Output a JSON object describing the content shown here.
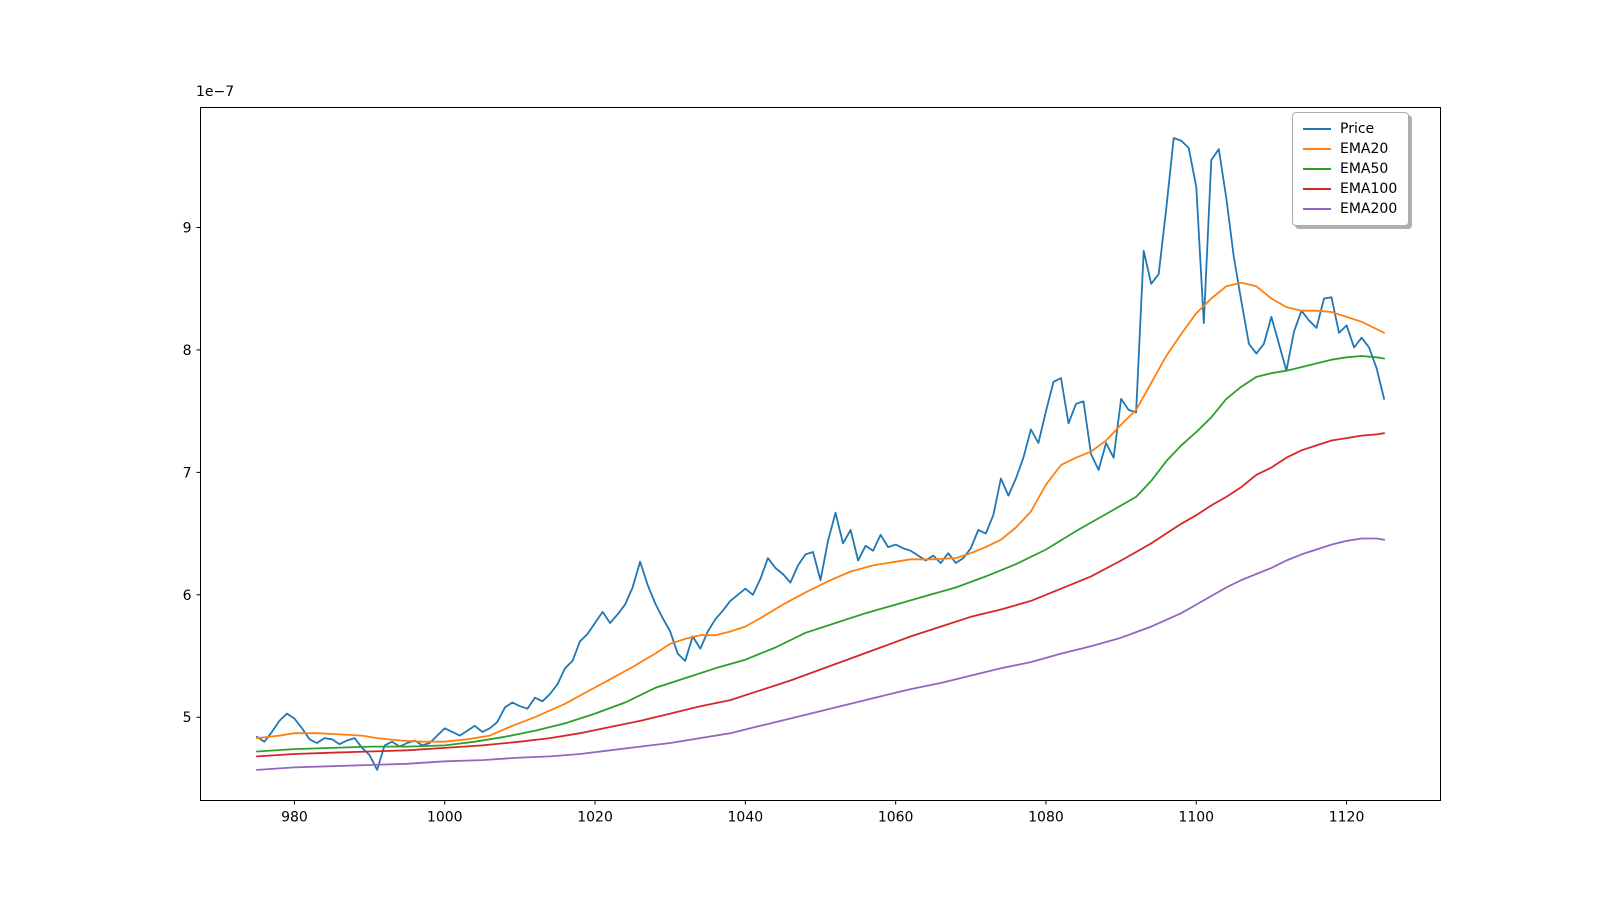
{
  "figure": {
    "background": "#ffffff"
  },
  "chart_data": {
    "type": "line",
    "title": "",
    "xlabel": "",
    "ylabel": "",
    "offset_label": "1e−7",
    "unit_multiplier": "1e-7",
    "xlim": [
      967.5,
      1132.5
    ],
    "ylim": [
      4.32,
      9.98
    ],
    "x_ticks": [
      980,
      1000,
      1020,
      1040,
      1060,
      1080,
      1100,
      1120
    ],
    "y_ticks": [
      5,
      6,
      7,
      8,
      9
    ],
    "grid": false,
    "legend_position": "upper right",
    "series": [
      {
        "name": "Price",
        "color": "#1f77b4",
        "x_start": 975,
        "x_step": 1,
        "y": [
          4.84,
          4.8,
          4.88,
          4.97,
          5.03,
          4.99,
          4.91,
          4.82,
          4.79,
          4.83,
          4.82,
          4.78,
          4.81,
          4.83,
          4.75,
          4.69,
          4.57,
          4.77,
          4.8,
          4.76,
          4.79,
          4.81,
          4.77,
          4.79,
          4.85,
          4.91,
          4.88,
          4.85,
          4.89,
          4.93,
          4.88,
          4.91,
          4.96,
          5.08,
          5.12,
          5.09,
          5.07,
          5.16,
          5.13,
          5.19,
          5.27,
          5.4,
          5.46,
          5.62,
          5.68,
          5.77,
          5.86,
          5.77,
          5.84,
          5.92,
          6.06,
          6.27,
          6.08,
          5.93,
          5.81,
          5.7,
          5.52,
          5.46,
          5.66,
          5.56,
          5.7,
          5.8,
          5.87,
          5.95,
          6.0,
          6.05,
          6.0,
          6.13,
          6.3,
          6.22,
          6.17,
          6.1,
          6.24,
          6.33,
          6.35,
          6.12,
          6.44,
          6.67,
          6.42,
          6.53,
          6.28,
          6.4,
          6.36,
          6.49,
          6.39,
          6.41,
          6.38,
          6.36,
          6.32,
          6.28,
          6.32,
          6.26,
          6.34,
          6.26,
          6.3,
          6.38,
          6.53,
          6.5,
          6.65,
          6.95,
          6.81,
          6.95,
          7.12,
          7.35,
          7.24,
          7.5,
          7.74,
          7.77,
          7.4,
          7.56,
          7.58,
          7.15,
          7.02,
          7.24,
          7.12,
          7.6,
          7.51,
          7.49,
          8.81,
          8.54,
          8.62,
          9.15,
          9.73,
          9.71,
          9.65,
          9.33,
          8.22,
          9.55,
          9.64,
          9.24,
          8.76,
          8.4,
          8.05,
          7.97,
          8.05,
          8.27,
          8.05,
          7.83,
          8.15,
          8.32,
          8.24,
          8.18,
          8.42,
          8.43,
          8.14,
          8.2,
          8.02,
          8.1,
          8.02,
          7.85,
          7.6
        ]
      },
      {
        "name": "EMA20",
        "color": "#ff7f0e",
        "x": [
          975,
          978,
          980,
          983,
          986,
          989,
          991,
          994,
          997,
          1000,
          1003,
          1006,
          1009,
          1012,
          1016,
          1019,
          1022,
          1025,
          1028,
          1030,
          1032,
          1034,
          1036,
          1038,
          1040,
          1042,
          1045,
          1048,
          1051,
          1054,
          1057,
          1060,
          1062,
          1065,
          1068,
          1070,
          1072,
          1074,
          1076,
          1078,
          1080,
          1082,
          1084,
          1086,
          1088,
          1090,
          1092,
          1094,
          1096,
          1098,
          1100,
          1102,
          1104,
          1106,
          1108,
          1110,
          1112,
          1114,
          1116,
          1118,
          1120,
          1122,
          1124,
          1125
        ],
        "y": [
          4.83,
          4.85,
          4.87,
          4.87,
          4.86,
          4.85,
          4.83,
          4.81,
          4.8,
          4.8,
          4.82,
          4.85,
          4.93,
          5.0,
          5.11,
          5.21,
          5.31,
          5.41,
          5.52,
          5.6,
          5.64,
          5.67,
          5.67,
          5.7,
          5.74,
          5.81,
          5.92,
          6.02,
          6.11,
          6.19,
          6.24,
          6.27,
          6.29,
          6.29,
          6.3,
          6.34,
          6.39,
          6.45,
          6.55,
          6.68,
          6.9,
          7.06,
          7.12,
          7.17,
          7.26,
          7.39,
          7.51,
          7.73,
          7.95,
          8.13,
          8.3,
          8.42,
          8.52,
          8.55,
          8.52,
          8.42,
          8.35,
          8.32,
          8.32,
          8.31,
          8.27,
          8.23,
          8.17,
          8.14
        ]
      },
      {
        "name": "EMA50",
        "color": "#2ca02c",
        "x": [
          975,
          980,
          985,
          990,
          995,
          1000,
          1004,
          1008,
          1012,
          1016,
          1020,
          1024,
          1028,
          1032,
          1036,
          1040,
          1044,
          1048,
          1052,
          1056,
          1060,
          1064,
          1068,
          1072,
          1076,
          1080,
          1084,
          1088,
          1092,
          1094,
          1096,
          1098,
          1100,
          1102,
          1104,
          1106,
          1108,
          1110,
          1112,
          1114,
          1116,
          1118,
          1120,
          1122,
          1124,
          1125
        ],
        "y": [
          4.72,
          4.74,
          4.75,
          4.76,
          4.76,
          4.77,
          4.8,
          4.84,
          4.89,
          4.95,
          5.03,
          5.12,
          5.24,
          5.32,
          5.4,
          5.47,
          5.57,
          5.69,
          5.77,
          5.85,
          5.92,
          5.99,
          6.06,
          6.15,
          6.25,
          6.37,
          6.52,
          6.66,
          6.8,
          6.93,
          7.09,
          7.22,
          7.33,
          7.45,
          7.6,
          7.7,
          7.78,
          7.81,
          7.83,
          7.86,
          7.89,
          7.92,
          7.94,
          7.95,
          7.94,
          7.93
        ]
      },
      {
        "name": "EMA100",
        "color": "#d62728",
        "x": [
          975,
          980,
          985,
          990,
          995,
          1000,
          1005,
          1010,
          1014,
          1018,
          1022,
          1026,
          1030,
          1034,
          1038,
          1042,
          1046,
          1050,
          1054,
          1058,
          1062,
          1066,
          1070,
          1074,
          1078,
          1082,
          1086,
          1090,
          1094,
          1098,
          1100,
          1102,
          1104,
          1106,
          1108,
          1110,
          1112,
          1114,
          1116,
          1118,
          1120,
          1122,
          1124,
          1125
        ],
        "y": [
          4.68,
          4.7,
          4.71,
          4.72,
          4.73,
          4.75,
          4.77,
          4.8,
          4.83,
          4.87,
          4.92,
          4.97,
          5.03,
          5.09,
          5.14,
          5.22,
          5.3,
          5.39,
          5.48,
          5.57,
          5.66,
          5.74,
          5.82,
          5.88,
          5.95,
          6.05,
          6.15,
          6.28,
          6.42,
          6.58,
          6.65,
          6.73,
          6.8,
          6.88,
          6.98,
          7.04,
          7.12,
          7.18,
          7.22,
          7.26,
          7.28,
          7.3,
          7.31,
          7.32
        ]
      },
      {
        "name": "EMA200",
        "color": "#9467bd",
        "x": [
          975,
          980,
          985,
          990,
          995,
          1000,
          1005,
          1010,
          1014,
          1018,
          1022,
          1026,
          1030,
          1034,
          1038,
          1042,
          1046,
          1050,
          1054,
          1058,
          1062,
          1066,
          1070,
          1074,
          1078,
          1082,
          1086,
          1090,
          1094,
          1098,
          1100,
          1102,
          1104,
          1106,
          1108,
          1110,
          1112,
          1114,
          1116,
          1118,
          1120,
          1122,
          1124,
          1125
        ],
        "y": [
          4.57,
          4.59,
          4.6,
          4.61,
          4.62,
          4.64,
          4.65,
          4.67,
          4.68,
          4.7,
          4.73,
          4.76,
          4.79,
          4.83,
          4.87,
          4.93,
          4.99,
          5.05,
          5.11,
          5.17,
          5.23,
          5.28,
          5.34,
          5.4,
          5.45,
          5.52,
          5.58,
          5.65,
          5.74,
          5.85,
          5.92,
          5.99,
          6.06,
          6.12,
          6.17,
          6.22,
          6.28,
          6.33,
          6.37,
          6.41,
          6.44,
          6.46,
          6.46,
          6.45
        ]
      }
    ]
  }
}
